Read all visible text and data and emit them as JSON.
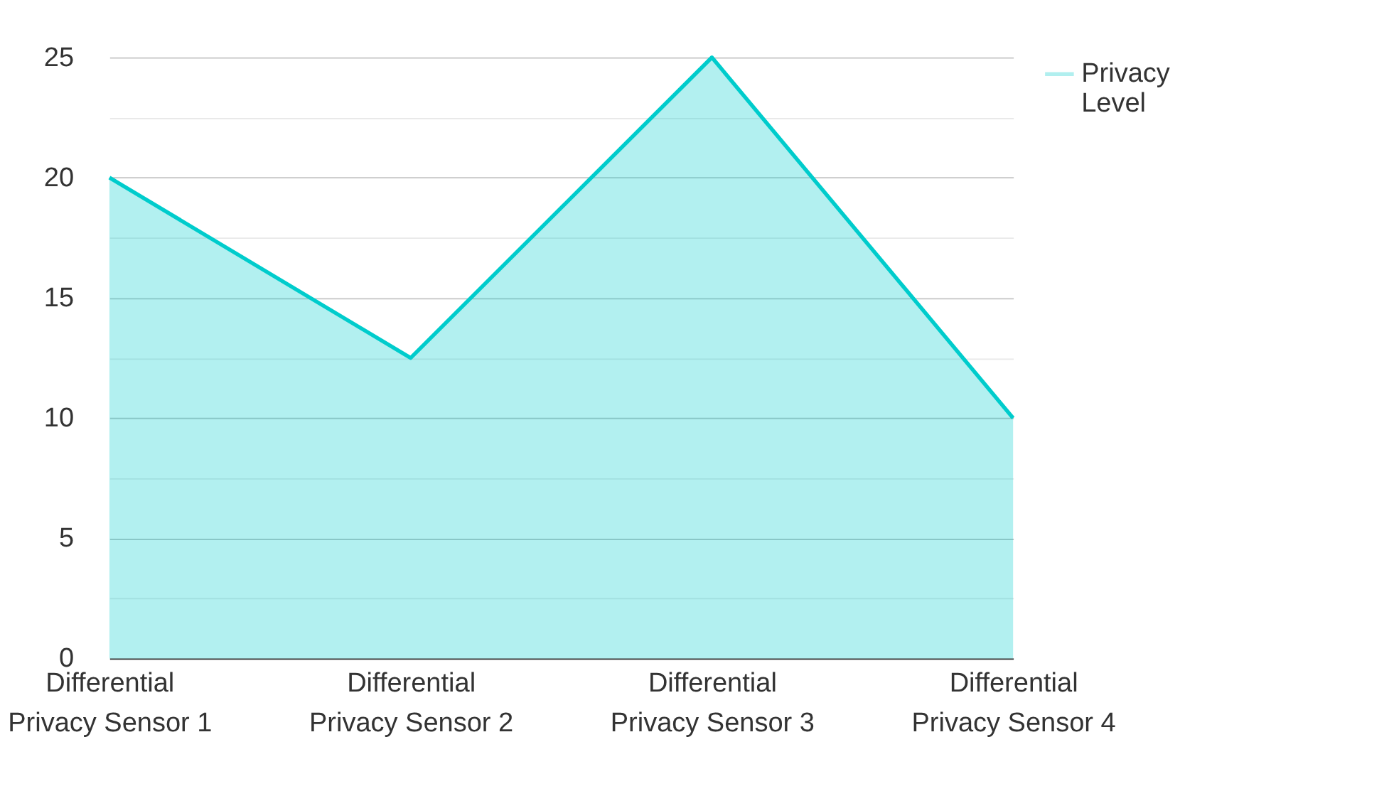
{
  "chart_data": {
    "type": "area",
    "categories": [
      "Differential Privacy Sensor 1",
      "Differential Privacy Sensor 2",
      "Differential Privacy Sensor 3",
      "Differential Privacy Sensor 4"
    ],
    "series": [
      {
        "name": "Privacy Level",
        "color": "#00cccc",
        "values": [
          20,
          12.5,
          25,
          10
        ]
      }
    ],
    "ylim": [
      0,
      25
    ],
    "yticks": [
      0,
      {
        "value": 2.5,
        "label": null
      },
      5,
      {
        "value": 7.5,
        "label": null
      },
      10,
      {
        "value": 12.5,
        "label": null
      },
      15,
      {
        "value": 17.5,
        "label": null
      },
      20,
      {
        "value": 22.5,
        "label": null
      },
      25
    ],
    "grid": "y",
    "legend": "top right"
  }
}
